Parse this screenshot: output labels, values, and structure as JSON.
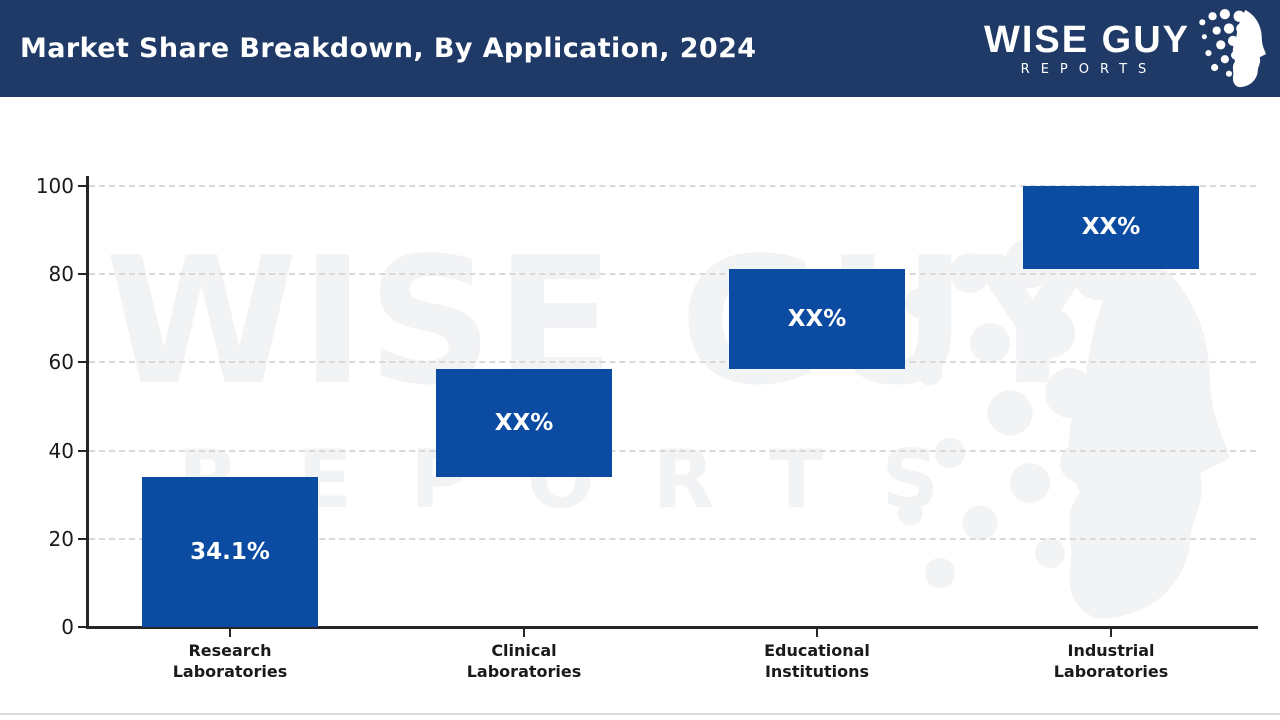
{
  "header": {
    "title": "Market Share Breakdown, By Application, 2024",
    "logo": {
      "line1": "WISE GUY",
      "line2": "REPORTS"
    }
  },
  "watermark": {
    "line1": "WISE GUY",
    "line2": "REPORTS"
  },
  "colors": {
    "header_bg": "#1f3a66",
    "bar": "#0b4ba1",
    "axis": "#262626",
    "grid": "#d9d9d9",
    "watermark": "#f2f3f5",
    "bar_label": "#ffffff",
    "text": "#1a1a1a"
  },
  "chart_data": {
    "type": "bar",
    "variant": "waterfall",
    "title": "Market Share Breakdown, By Application, 2024",
    "categories": [
      "Research\nLaboratories",
      "Clinical\nLaboratories",
      "Educational\nInstitutions",
      "Industrial\nLaboratories"
    ],
    "segments": [
      {
        "category": "Research Laboratories",
        "start": 0,
        "end": 34.1,
        "label": "34.1%"
      },
      {
        "category": "Clinical Laboratories",
        "start": 34.1,
        "end": 58.5,
        "label": "XX%"
      },
      {
        "category": "Educational Institutions",
        "start": 58.5,
        "end": 81.2,
        "label": "XX%"
      },
      {
        "category": "Industrial Laboratories",
        "start": 81.2,
        "end": 100,
        "label": "XX%"
      }
    ],
    "ylim": [
      0,
      100
    ],
    "yticks": [
      0,
      20,
      40,
      60,
      80,
      100
    ],
    "xlabel": "",
    "ylabel": "",
    "grid": "horizontal-dashed",
    "legend": "none"
  }
}
